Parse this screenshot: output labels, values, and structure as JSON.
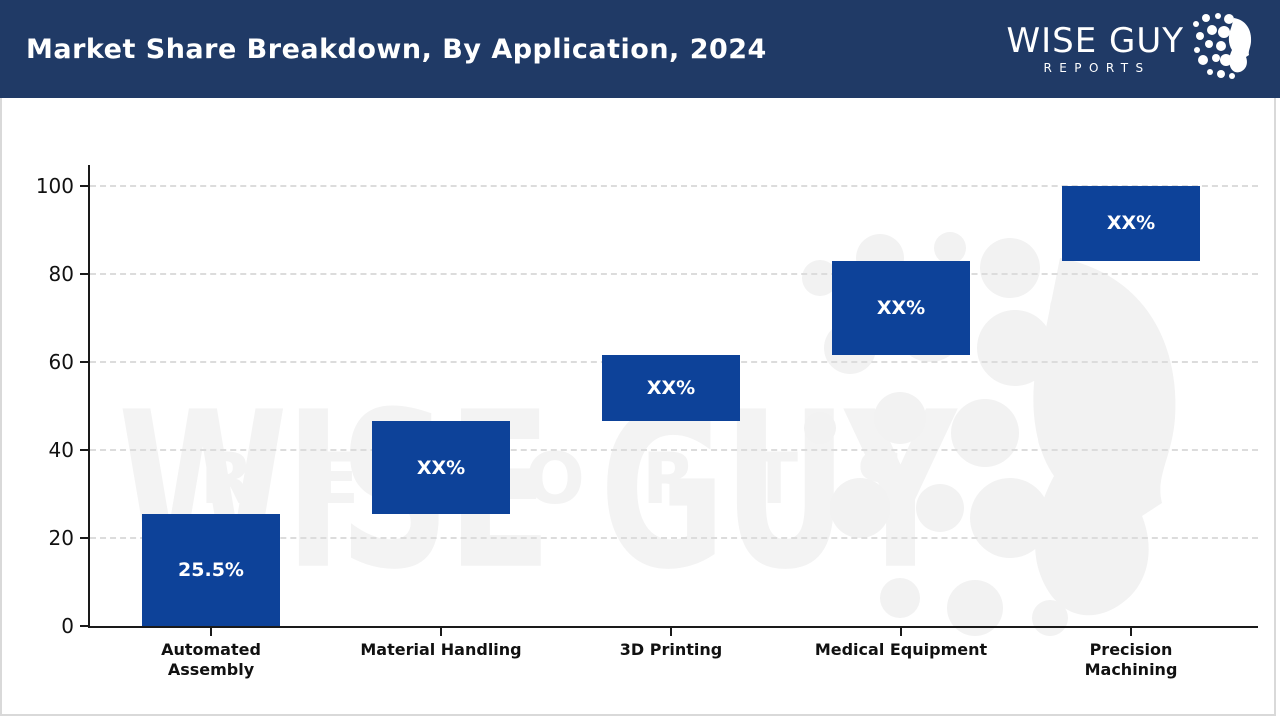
{
  "header": {
    "title": "Market Share Breakdown, By Application, 2024",
    "logo": {
      "line1": "WISE GUY",
      "line2": "REPORTS"
    }
  },
  "watermark": {
    "line1": "WISE GUY",
    "line2": "REPORTS"
  },
  "colors": {
    "header_bg": "#203a66",
    "bar": "#0d4299",
    "bar_label": "#ffffff",
    "gridline": "#dcdcdc",
    "axis": "#1a1a1a",
    "watermark": "#f3f3f3"
  },
  "chart_data": {
    "type": "bar",
    "subtype": "waterfall",
    "title": "Market Share Breakdown, By Application, 2024",
    "categories": [
      "Automated Assembly",
      "Material Handling",
      "3D Printing",
      "Medical Equipment",
      "Precision Machining"
    ],
    "segments": [
      {
        "category": "Automated Assembly",
        "start": 0,
        "end": 25.5,
        "label": "25.5%"
      },
      {
        "category": "Material Handling",
        "start": 25.5,
        "end": 46.5,
        "label": "XX%"
      },
      {
        "category": "3D Printing",
        "start": 46.5,
        "end": 61.5,
        "label": "XX%"
      },
      {
        "category": "Medical Equipment",
        "start": 61.5,
        "end": 83,
        "label": "XX%"
      },
      {
        "category": "Precision Machining",
        "start": 83,
        "end": 100,
        "label": "XX%"
      }
    ],
    "xlabel": "",
    "ylabel": "",
    "yticks": [
      0,
      20,
      40,
      60,
      80,
      100
    ],
    "ylim": [
      0,
      105
    ],
    "grid": "horizontal-dashed",
    "legend": "none"
  }
}
